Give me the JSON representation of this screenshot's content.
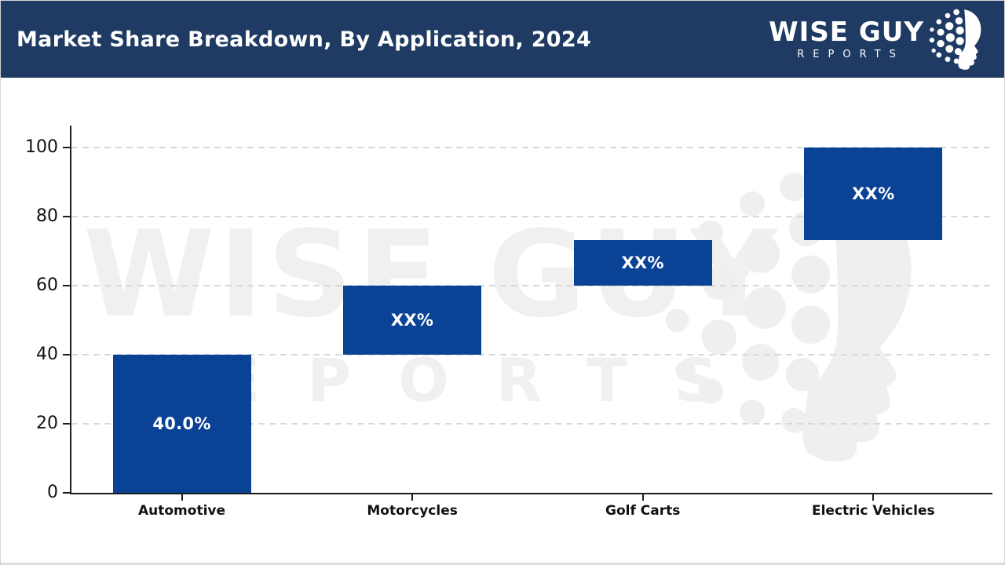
{
  "header": {
    "title": "Market Share Breakdown, By Application, 2024",
    "bg_color": "#1f3a63",
    "logo": {
      "line1": "WISE GUY",
      "line2": "REPORTS"
    }
  },
  "watermark": {
    "line1": "WISE GUY",
    "line2": "REPORTS"
  },
  "chart_data": {
    "type": "bar",
    "subtype": "waterfall",
    "title": "Market Share Breakdown, By Application, 2024",
    "xlabel": "",
    "ylabel": "",
    "ylim": [
      0,
      100
    ],
    "yticks": [
      0,
      20,
      40,
      60,
      80,
      100
    ],
    "grid": "dashed horizontal",
    "legend": false,
    "bar_color": "#0a4296",
    "label_color": "#ffffff",
    "categories": [
      "Automotive",
      "Motorcycles",
      "Golf Carts",
      "Electric Vehicles"
    ],
    "segments": [
      {
        "category": "Automotive",
        "start": 0,
        "end": 40,
        "value": 40,
        "label": "40.0%"
      },
      {
        "category": "Motorcycles",
        "start": 40,
        "end": 60,
        "value": 20,
        "label": "XX%"
      },
      {
        "category": "Golf Carts",
        "start": 60,
        "end": 73,
        "value": 13,
        "label": "XX%"
      },
      {
        "category": "Electric Vehicles",
        "start": 73,
        "end": 100,
        "value": 27,
        "label": "XX%"
      }
    ]
  }
}
